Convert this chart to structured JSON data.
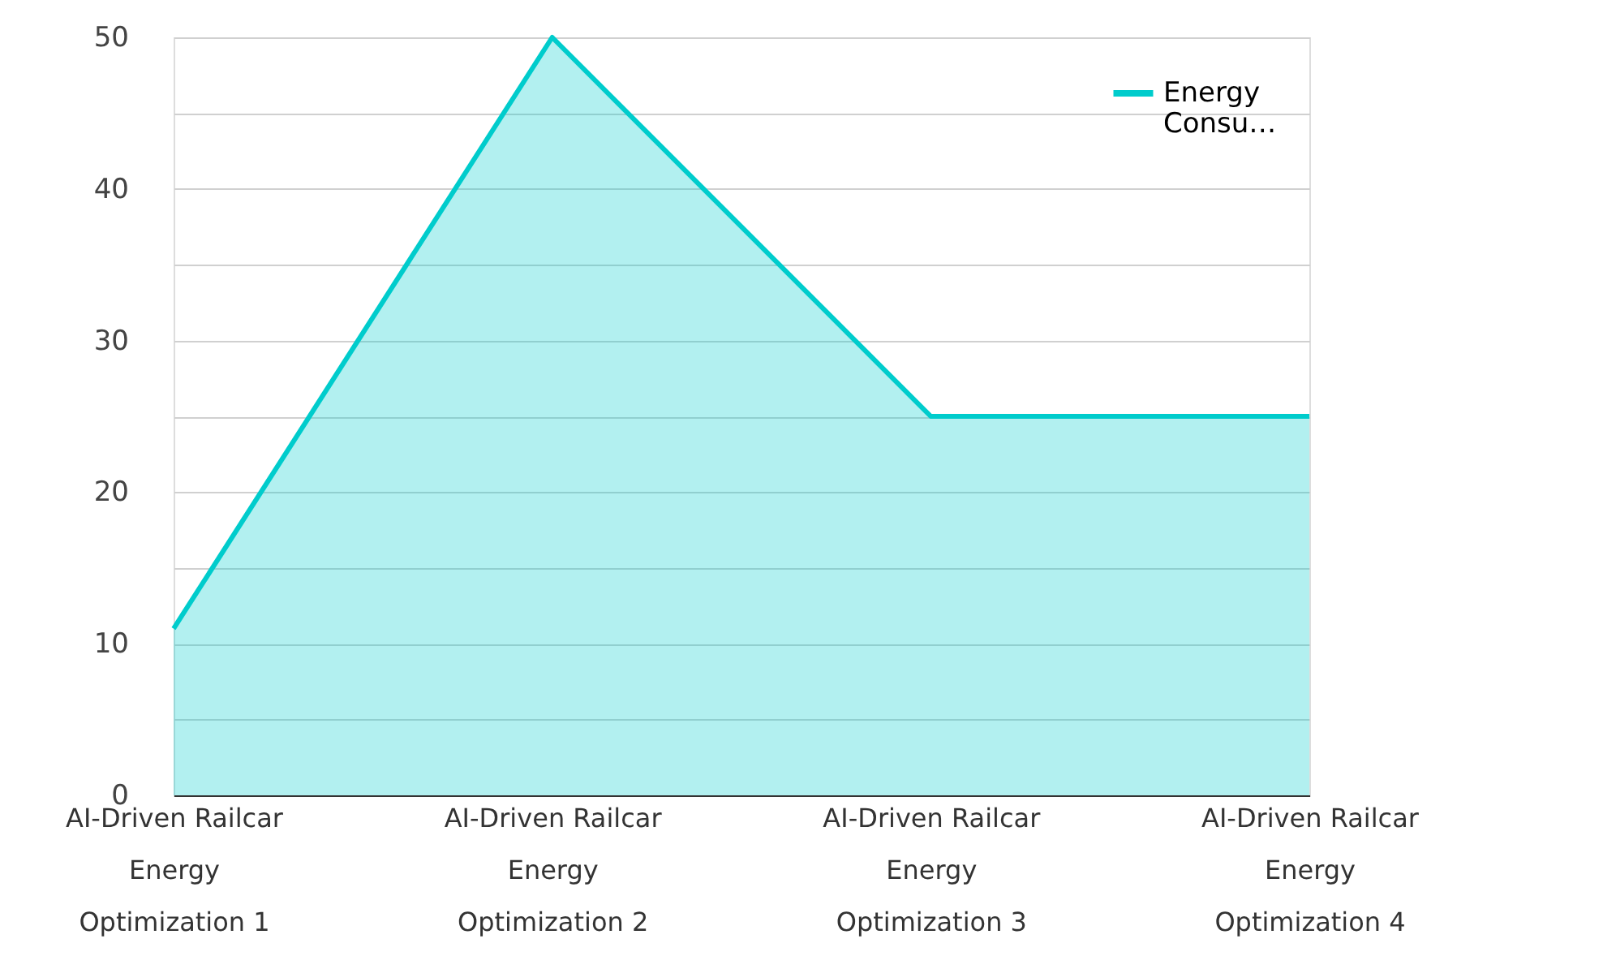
{
  "chart_data": {
    "type": "area",
    "categories": [
      "AI-Driven Railcar Energy Optimization 1",
      "AI-Driven Railcar Energy Optimization 2",
      "AI-Driven Railcar Energy Optimization 3",
      "AI-Driven Railcar Energy Optimization 4"
    ],
    "series": [
      {
        "name": "Energy Consu…",
        "color": "#00cccc",
        "values": [
          11,
          50,
          25,
          25
        ]
      }
    ],
    "ylim": [
      0,
      50
    ],
    "yticks": [
      0,
      {
        "value": 5,
        "label": null
      },
      10,
      {
        "value": 15,
        "label": null
      },
      20,
      {
        "value": 25,
        "label": null
      },
      30,
      {
        "value": 35,
        "label": null
      },
      40,
      {
        "value": 45,
        "label": null
      },
      50
    ],
    "grid": "y",
    "legend": "top right"
  }
}
